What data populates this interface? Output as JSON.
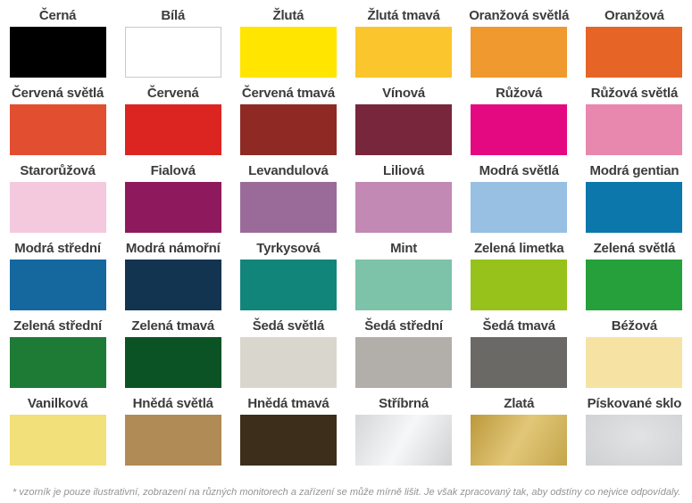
{
  "chart_data": {
    "type": "table",
    "title": "Color swatch sampler (vzorník barev)",
    "grid": {
      "columns": 6,
      "rows": 6
    },
    "swatches": [
      {
        "label": "Černá",
        "solid": "#000000"
      },
      {
        "label": "Bílá",
        "solid": "#FFFFFF",
        "border": "#C9C9C9"
      },
      {
        "label": "Žlutá",
        "solid": "#FFE500"
      },
      {
        "label": "Žlutá tmavá",
        "solid": "#FBC52D"
      },
      {
        "label": "Oranžová světlá",
        "solid": "#F0992E"
      },
      {
        "label": "Oranžová",
        "solid": "#E66426"
      },
      {
        "label": "Červená světlá",
        "solid": "#E24E30"
      },
      {
        "label": "Červená",
        "solid": "#DC2521"
      },
      {
        "label": "Červená tmavá",
        "solid": "#8E2A23"
      },
      {
        "label": "Vínová",
        "solid": "#78263C"
      },
      {
        "label": "Růžová",
        "solid": "#E40980"
      },
      {
        "label": "Růžová světlá",
        "solid": "#E888AE"
      },
      {
        "label": "Starorůžová",
        "solid": "#F4C8DD"
      },
      {
        "label": "Fialová",
        "solid": "#8E1A5D"
      },
      {
        "label": "Levandulová",
        "solid": "#9A6B99"
      },
      {
        "label": "Liliová",
        "solid": "#C289B4"
      },
      {
        "label": "Modrá světlá",
        "solid": "#97C0E3"
      },
      {
        "label": "Modrá gentian",
        "solid": "#0B77AA"
      },
      {
        "label": "Modrá střední",
        "solid": "#15689E"
      },
      {
        "label": "Modrá námořní",
        "solid": "#133450"
      },
      {
        "label": "Tyrkysová",
        "solid": "#12857B"
      },
      {
        "label": "Mint",
        "solid": "#7CC3A9"
      },
      {
        "label": "Zelená limetka",
        "solid": "#97C21C"
      },
      {
        "label": "Zelená světlá",
        "solid": "#25A03A"
      },
      {
        "label": "Zelená střední",
        "solid": "#1D7B36"
      },
      {
        "label": "Zelená tmavá",
        "solid": "#0B5324"
      },
      {
        "label": "Šedá světlá",
        "solid": "#D9D6CD"
      },
      {
        "label": "Šedá střední",
        "solid": "#B2AFAA"
      },
      {
        "label": "Šedá tmavá",
        "solid": "#6A6965"
      },
      {
        "label": "Béžová",
        "solid": "#F6E3A4"
      },
      {
        "label": "Vanilková",
        "solid": "#F2E07A"
      },
      {
        "label": "Hnědá světlá",
        "solid": "#B08B55"
      },
      {
        "label": "Hnědá tmavá",
        "solid": "#3C2E1B"
      },
      {
        "label": "Stříbrná",
        "linear": [
          "#D4D6D8",
          "#F6F7F8",
          "#CFD1D3"
        ],
        "angle": 120
      },
      {
        "label": "Zlatá",
        "linear": [
          "#BB983C",
          "#E2C778",
          "#C4A54B"
        ],
        "angle": 120
      },
      {
        "label": "Pískované sklo",
        "radial": [
          "#E2E3E5",
          "#CACBCD"
        ]
      }
    ]
  },
  "footer": {
    "note": "* vzorník je pouze ilustrativní, zobrazení na různých monitorech a zařízení se může mírně lišit. Je však zpracovaný tak, aby odstíny co nejvice odpovídaly."
  }
}
